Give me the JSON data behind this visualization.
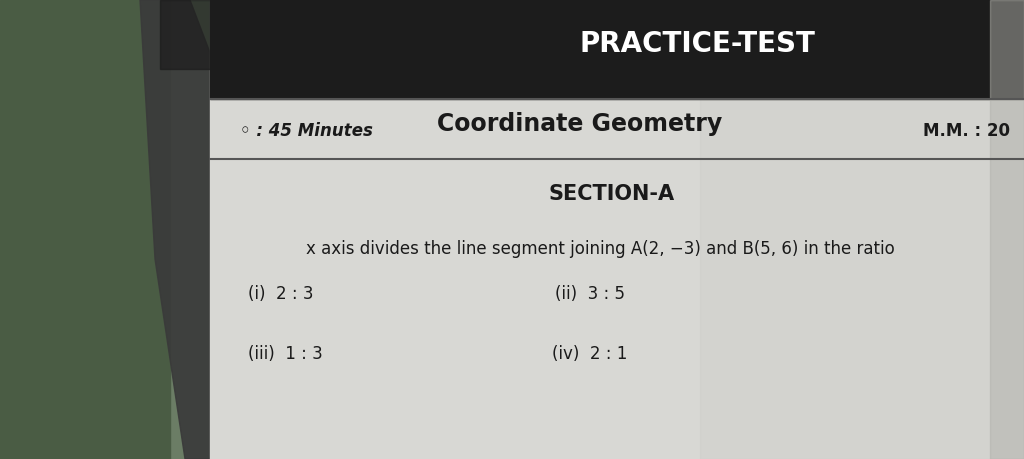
{
  "title": "PRACTICE-TEST",
  "subtitle": "Coordinate Geometry",
  "time_label": "◦ : 45 Minutes",
  "mm_label": "M.M. : 20",
  "section": "SECTION-A",
  "question_line1": "x axis divides the line segment joining A(2, −3) and B(5, 6) in the ratio",
  "option_i": "(i)  2 : 3",
  "option_ii": "(ii)  3 : 5",
  "option_iii": "(iii)  1 : 3",
  "option_iv": "(iv)  2 : 1",
  "bg_color_green": "#6b7d65",
  "bg_color_page": "#d8d8d4",
  "bg_color_page_bright": "#e8e8e4",
  "header_bar_color": "#1c1c1c",
  "title_text_color": "#ffffff",
  "subtitle_text_color": "#1a1a1a",
  "section_text_color": "#1a1a1a",
  "body_text_color": "#1a1a1a",
  "line_color": "#555555",
  "spine_dark": "#2a2a2a",
  "spine_gray": "#8a8a8a"
}
